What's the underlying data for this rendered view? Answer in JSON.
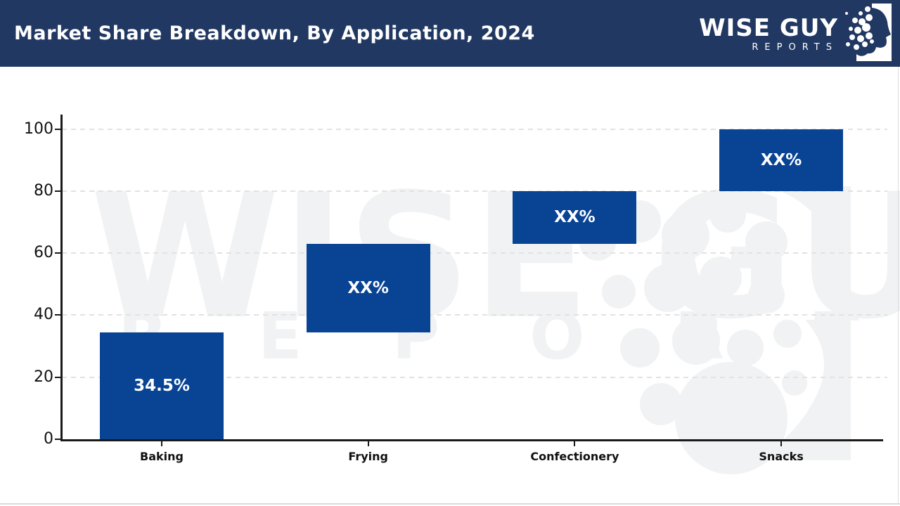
{
  "header": {
    "title": "Market Share Breakdown, By Application, 2024",
    "logo": {
      "line1": "WISE GUY",
      "line2": "REPORTS"
    },
    "bg_color": "#213862"
  },
  "watermark": {
    "line1": "WISE GUY",
    "line2": "REPORTS"
  },
  "chart_data": {
    "type": "bar",
    "variant": "waterfall",
    "title": "Market Share Breakdown, By Application, 2024",
    "categories": [
      "Baking",
      "Frying",
      "Confectionery",
      "Snacks"
    ],
    "segments": [
      {
        "category": "Baking",
        "start": 0,
        "end": 34.5,
        "label": "34.5%"
      },
      {
        "category": "Frying",
        "start": 34.5,
        "end": 63,
        "label": "XX%"
      },
      {
        "category": "Confectionery",
        "start": 63,
        "end": 80,
        "label": "XX%"
      },
      {
        "category": "Snacks",
        "start": 80,
        "end": 100,
        "label": "XX%"
      }
    ],
    "xlabel": "",
    "ylabel": "",
    "yticks": [
      0,
      20,
      40,
      60,
      80,
      100
    ],
    "ylim": [
      0,
      105
    ],
    "grid": "horizontal-dashed",
    "legend": "none",
    "bar_color": "#084394",
    "bar_label_color": "#ffffff",
    "axis_color": "#1a1a1a"
  }
}
